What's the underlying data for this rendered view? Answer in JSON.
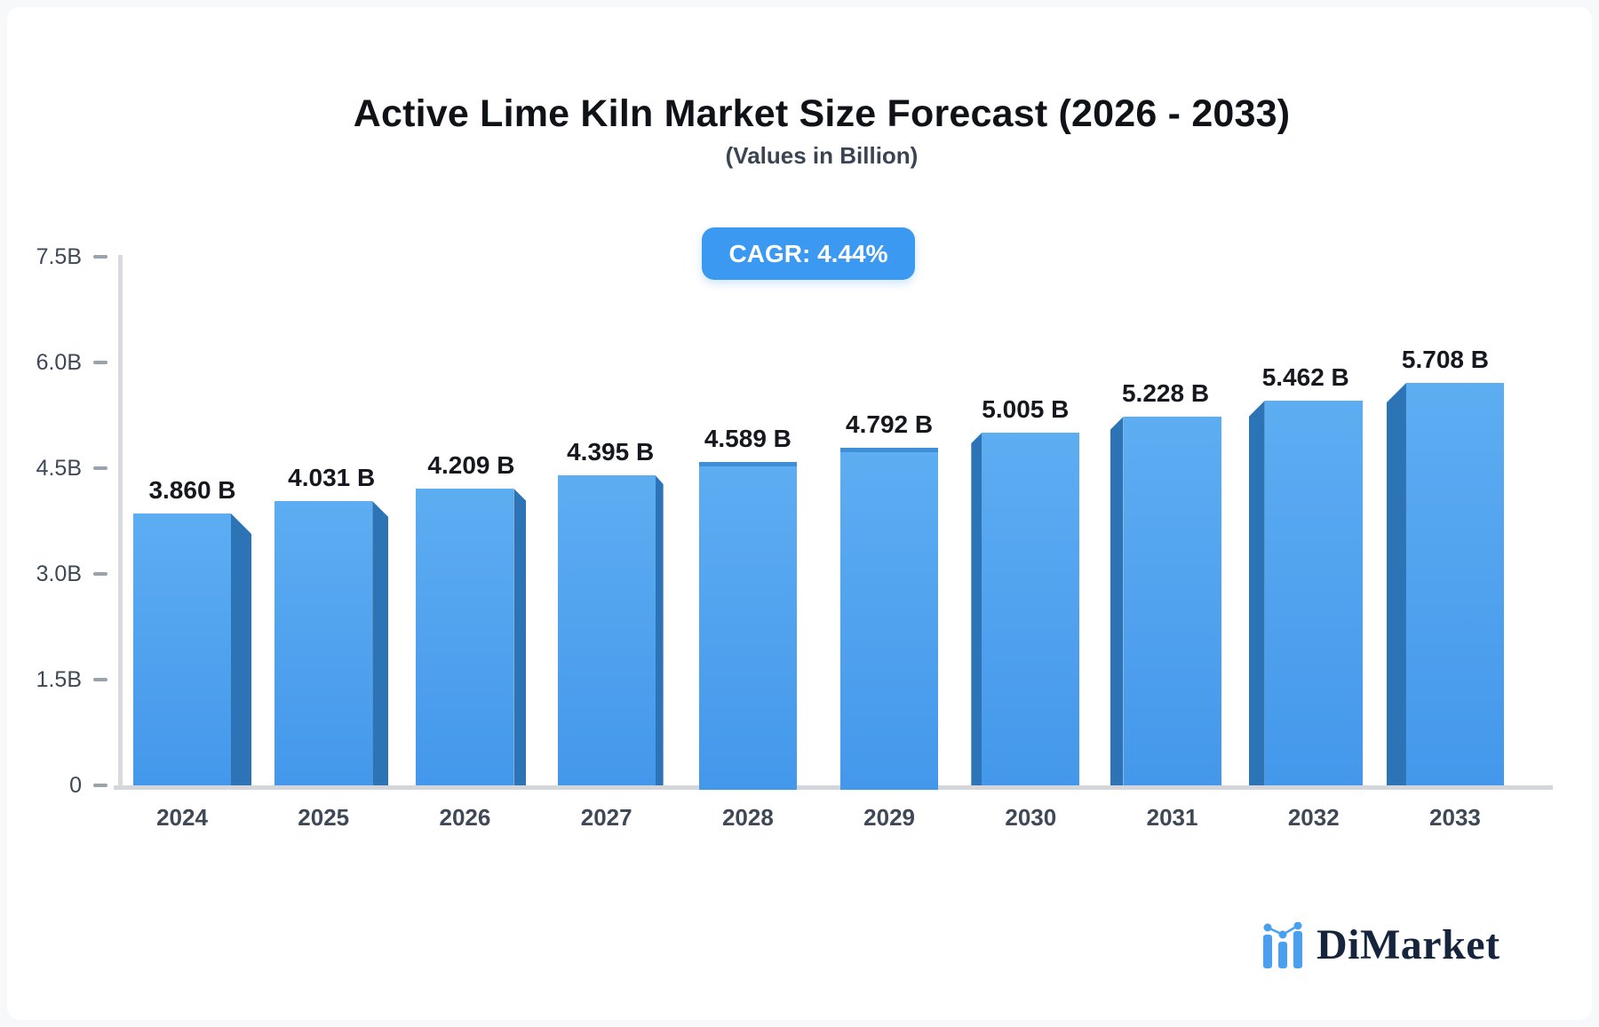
{
  "chart_data": {
    "type": "bar",
    "title": "Active Lime Kiln Market Size Forecast (2026 - 2033)",
    "subtitle": "(Values in Billion)",
    "cagr_badge": "CAGR: 4.44%",
    "categories": [
      "2024",
      "2025",
      "2026",
      "2027",
      "2028",
      "2029",
      "2030",
      "2031",
      "2032",
      "2033"
    ],
    "values": [
      3.86,
      4.031,
      4.209,
      4.395,
      4.589,
      4.792,
      5.005,
      5.228,
      5.462,
      5.708
    ],
    "value_labels": [
      "3.860 B",
      "4.031 B",
      "4.209 B",
      "4.395 B",
      "4.589 B",
      "4.792 B",
      "5.005 B",
      "5.228 B",
      "5.462 B",
      "5.708 B"
    ],
    "unit": "Billion",
    "y_ticks": [
      {
        "value": 0.0,
        "label": "0"
      },
      {
        "value": 1.5,
        "label": "1.5B"
      },
      {
        "value": 3.0,
        "label": "3.0B"
      },
      {
        "value": 4.5,
        "label": "4.5B"
      },
      {
        "value": 6.0,
        "label": "6.0B"
      },
      {
        "value": 7.5,
        "label": "7.5B"
      }
    ],
    "ylim": [
      0,
      7.5
    ],
    "grid": "off",
    "legend": "none",
    "colors": {
      "bar_face_top": "#5dadf2",
      "bar_face_bottom": "#4498eb",
      "bar_side": "#2d74b6",
      "bar_top_edge": "#3f8fd8",
      "badge_bg": "#3b99f1",
      "axis": "#d7dade"
    }
  },
  "brand": {
    "name": "DiMarket",
    "logo_icon": "bar-chart-with-dots-icon",
    "accent": "#4aa0ef",
    "text_color": "#16243e"
  }
}
